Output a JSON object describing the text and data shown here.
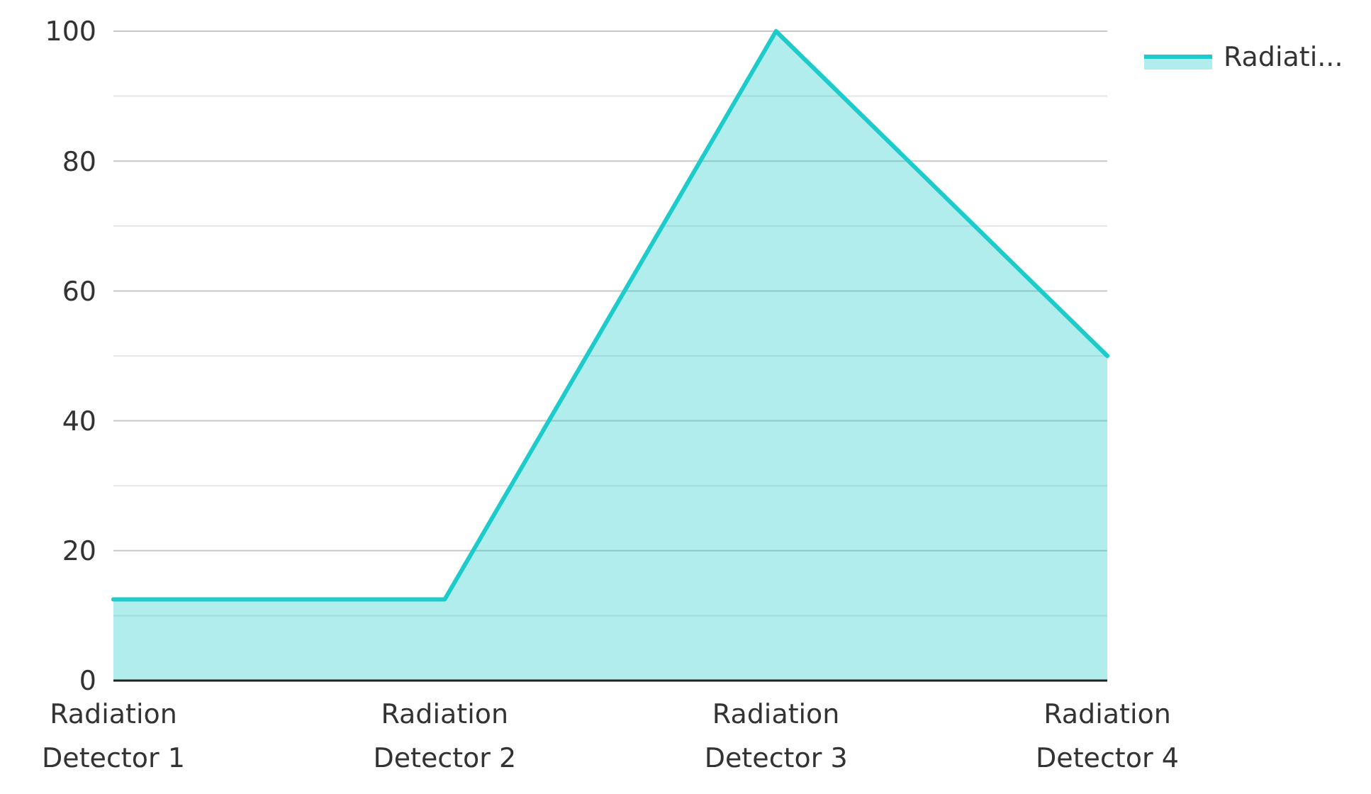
{
  "chart_data": {
    "type": "area",
    "categories": [
      "Radiation Detector 1",
      "Radiation Detector 2",
      "Radiation Detector 3",
      "Radiation Detector 4"
    ],
    "series": [
      {
        "name": "Radiati...",
        "color": "#1ecbcb",
        "values": [
          12.5,
          12.5,
          100,
          50
        ]
      }
    ],
    "ylim": [
      0,
      100
    ],
    "yticks": [
      0,
      {
        "value": 10,
        "label": null
      },
      20,
      {
        "value": 30,
        "label": null
      },
      40,
      {
        "value": 50,
        "label": null
      },
      60,
      {
        "value": 70,
        "label": null
      },
      80,
      {
        "value": 90,
        "label": null
      },
      100
    ],
    "grid": "y",
    "legend": "top right"
  }
}
